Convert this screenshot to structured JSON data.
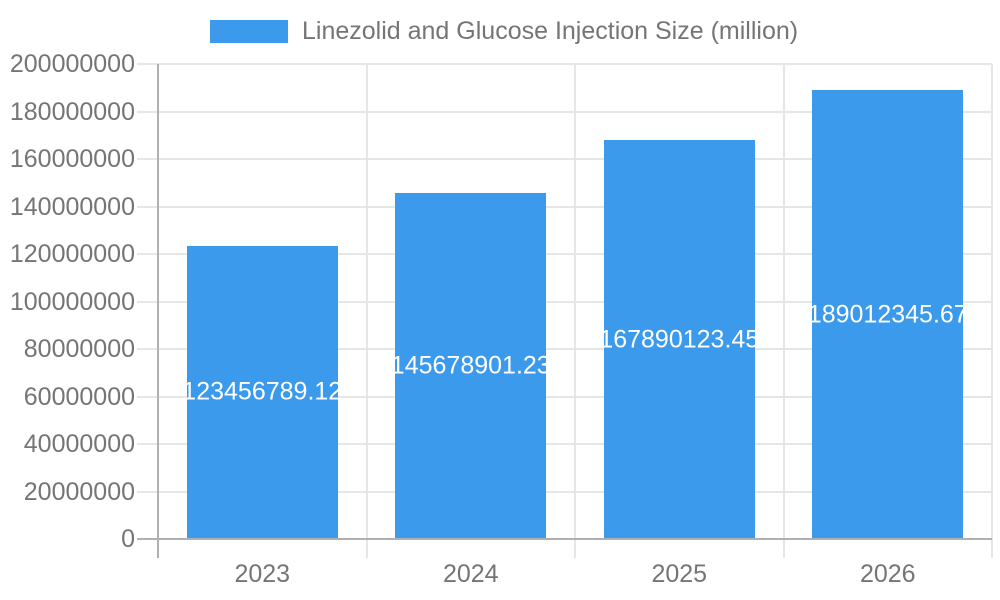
{
  "legend": {
    "label": "Linezolid and Glucose Injection Size (million)"
  },
  "chart_data": {
    "type": "bar",
    "title": "Linezolid and Glucose Injection Size (million)",
    "xlabel": "",
    "ylabel": "",
    "categories": [
      "2023",
      "2024",
      "2025",
      "2026"
    ],
    "values": [
      123456789.12,
      145678901.23,
      167890123.45,
      189012345.67
    ],
    "value_labels": [
      "123456789.12",
      "145678901.23",
      "167890123.45",
      "189012345.67"
    ],
    "y_ticks": [
      0,
      20000000,
      40000000,
      60000000,
      80000000,
      100000000,
      120000000,
      140000000,
      160000000,
      180000000,
      200000000
    ],
    "ylim": [
      0,
      200000000
    ],
    "grid": true,
    "legend_position": "top",
    "colors": {
      "bar": "#3B9AEC",
      "axis_text": "#757575",
      "bar_label_text": "#FFFFFF",
      "grid_line": "#E6E6E6",
      "axis_line": "#B0B0B0",
      "background": "#FFFFFF"
    }
  }
}
